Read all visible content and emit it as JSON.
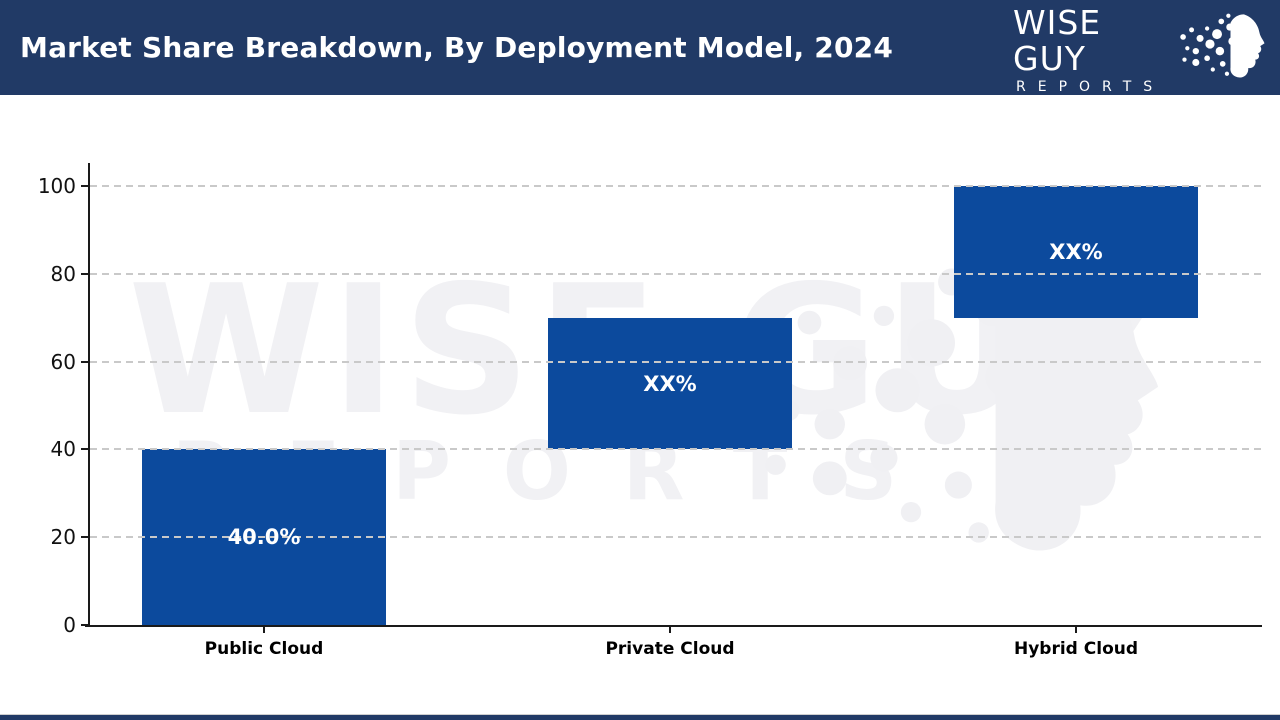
{
  "header": {
    "title": "Market Share Breakdown, By Deployment Model, 2024",
    "logo": {
      "line1": "WISE GUY",
      "line2": "REPORTS"
    },
    "bg_color": "#213a66",
    "text_color": "#ffffff"
  },
  "watermark": {
    "line1": "WISE GUY",
    "line2": "REPORTS"
  },
  "chart_data": {
    "type": "bar",
    "variant": "floating-segment-bars",
    "title": "Market Share Breakdown, By Deployment Model, 2024",
    "categories": [
      "Public Cloud",
      "Private Cloud",
      "Hybrid Cloud"
    ],
    "series": [
      {
        "name": "Market Share %",
        "starts": [
          0,
          40,
          70
        ],
        "ends": [
          40,
          70,
          100
        ],
        "segment_sizes": [
          40,
          30,
          30
        ],
        "labels": [
          "40.0%",
          "XX%",
          "XX%"
        ]
      }
    ],
    "xlabel": "",
    "ylabel": "",
    "ylim": [
      0,
      105
    ],
    "yticks": [
      0,
      20,
      40,
      60,
      80,
      100
    ],
    "grid": "horizontal-dashed",
    "legend": "none",
    "bar_color": "#0c4a9d",
    "bar_label_color": "#ffffff",
    "grid_color": "#c9c9c9",
    "axis_color": "#1a1a1a"
  },
  "footer": {
    "bg_color": "#213a66"
  }
}
